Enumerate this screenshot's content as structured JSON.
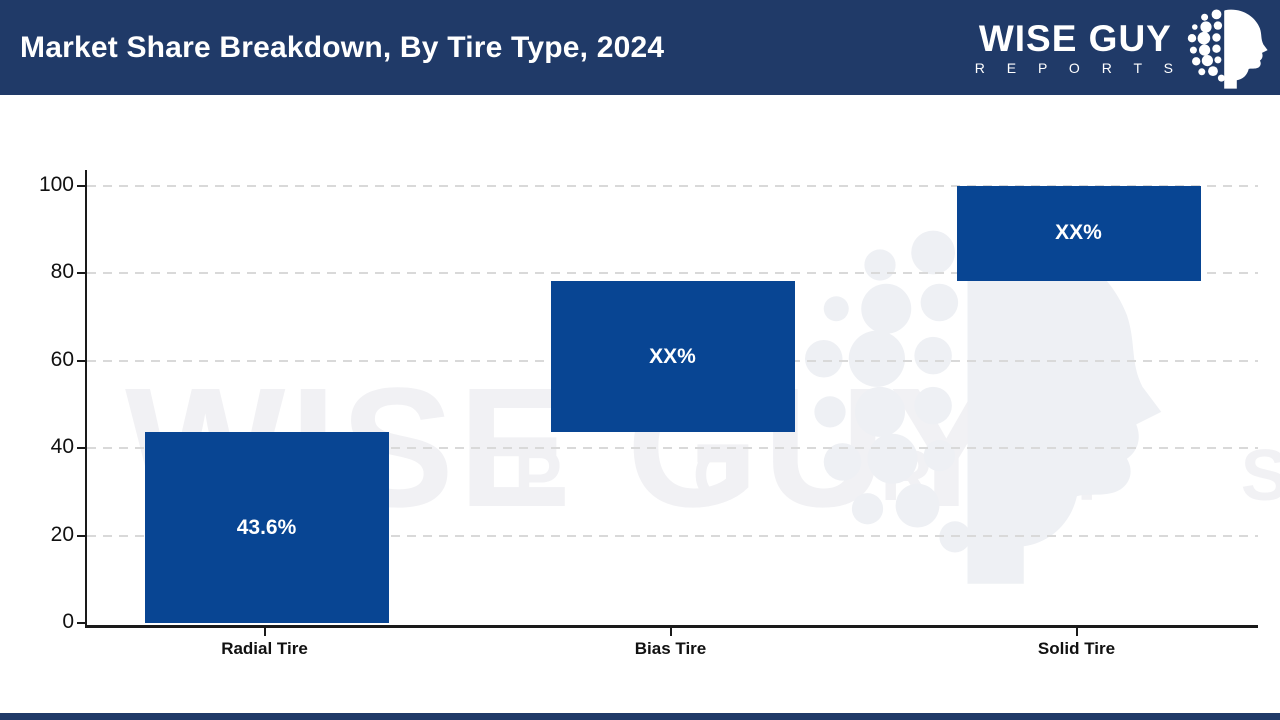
{
  "header": {
    "title": "Market Share Breakdown, By Tire Type, 2024",
    "logo": {
      "line1": "WISE GUY",
      "line2": "R E P O R T S",
      "icon": "dotted-head-profile-icon"
    }
  },
  "watermark": {
    "line1": "WISE GUY",
    "line2": "R E P O R T S",
    "icon": "dotted-head-profile-icon"
  },
  "colors": {
    "header_bg": "#203a68",
    "bar": "#084593",
    "bar_label": "#ffffff",
    "grid": "#d9d9d9",
    "axis": "#1a1a1a",
    "watermark": "#f1f1f4",
    "tick_label": "#111111"
  },
  "chart_data": {
    "type": "bar",
    "subtype": "floating-segment (waterfall-style market share breakdown)",
    "title": "Market Share Breakdown, By Tire Type, 2024",
    "categories": [
      "Radial Tire",
      "Bias Tire",
      "Solid Tire"
    ],
    "bars": [
      {
        "category": "Radial Tire",
        "from": 0,
        "to": 43.6,
        "label": "43.6%"
      },
      {
        "category": "Bias Tire",
        "from": 43.6,
        "to": 78.3,
        "label": "XX%"
      },
      {
        "category": "Solid Tire",
        "from": 78.3,
        "to": 100,
        "label": "XX%"
      }
    ],
    "xlabel": "",
    "ylabel": "",
    "ylim": [
      0,
      100
    ],
    "yticks": [
      0,
      20,
      40,
      60,
      80,
      100
    ],
    "grid": "horizontal dashed gridlines",
    "legend": "none",
    "units": "percent market share"
  }
}
